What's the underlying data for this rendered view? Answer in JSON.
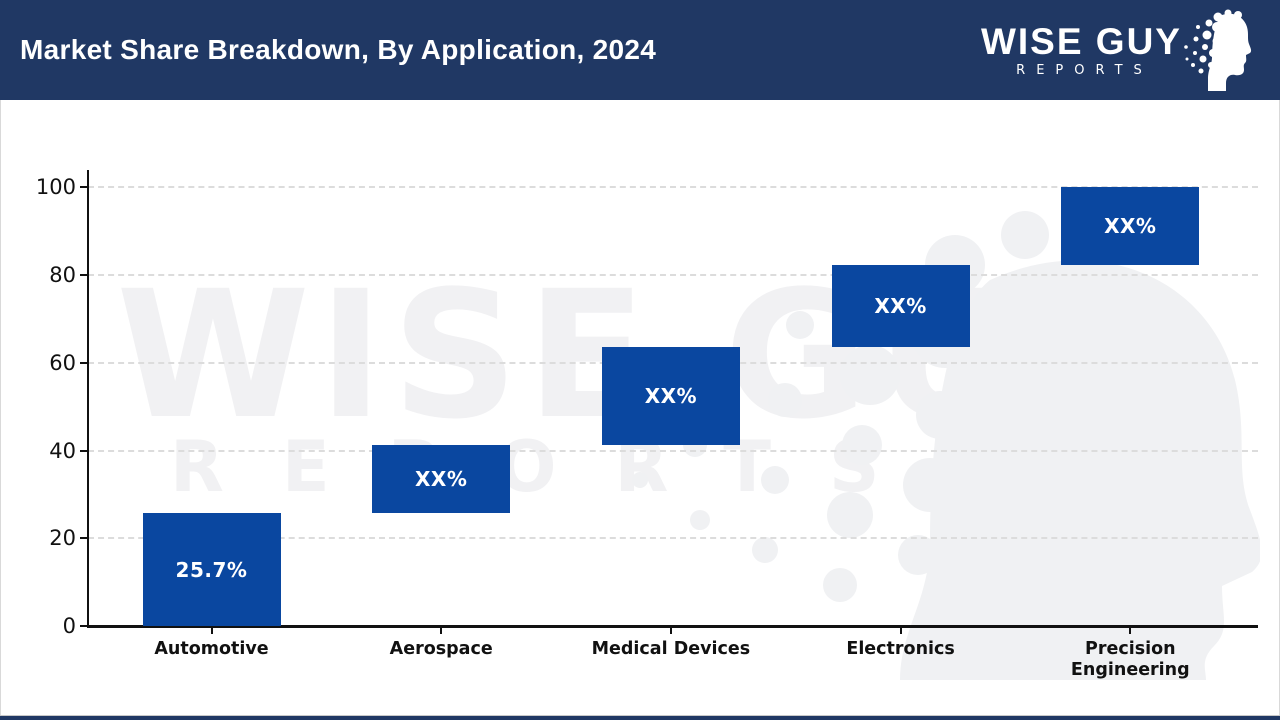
{
  "header": {
    "title": "Market Share Breakdown, By Application, 2024",
    "logo": {
      "line1": "WISE GUY",
      "line2": "REPORTS"
    }
  },
  "watermark": {
    "line1": "WISE GUY",
    "line2": "REPORTS"
  },
  "colors": {
    "header_bg": "#203864",
    "footer_bg": "#203864",
    "bar": "#0a47a0",
    "bar_label_text": "#ffffff",
    "gridline": "#dcdcdc",
    "axis": "#111111",
    "watermark": "#f1f1f3"
  },
  "chart_data": {
    "type": "bar",
    "subtype": "waterfall",
    "title": "Market Share Breakdown, By Application, 2024",
    "categories": [
      "Automotive",
      "Aerospace",
      "Medical Devices",
      "Electronics",
      "Precision Engineering"
    ],
    "series": [
      {
        "name": "Market Share %",
        "segments": [
          {
            "start": 0,
            "end": 25.7,
            "label": "25.7%"
          },
          {
            "start": 25.7,
            "end": 41.4,
            "label": "XX%"
          },
          {
            "start": 41.4,
            "end": 63.7,
            "label": "XX%"
          },
          {
            "start": 63.7,
            "end": 82.3,
            "label": "XX%"
          },
          {
            "start": 82.3,
            "end": 100,
            "label": "XX%"
          }
        ]
      }
    ],
    "xlabel": "",
    "ylabel": "",
    "ylim": [
      0,
      100
    ],
    "yticks": [
      0,
      20,
      40,
      60,
      80,
      100
    ],
    "grid": "horizontal-dashed",
    "legend": "none"
  }
}
